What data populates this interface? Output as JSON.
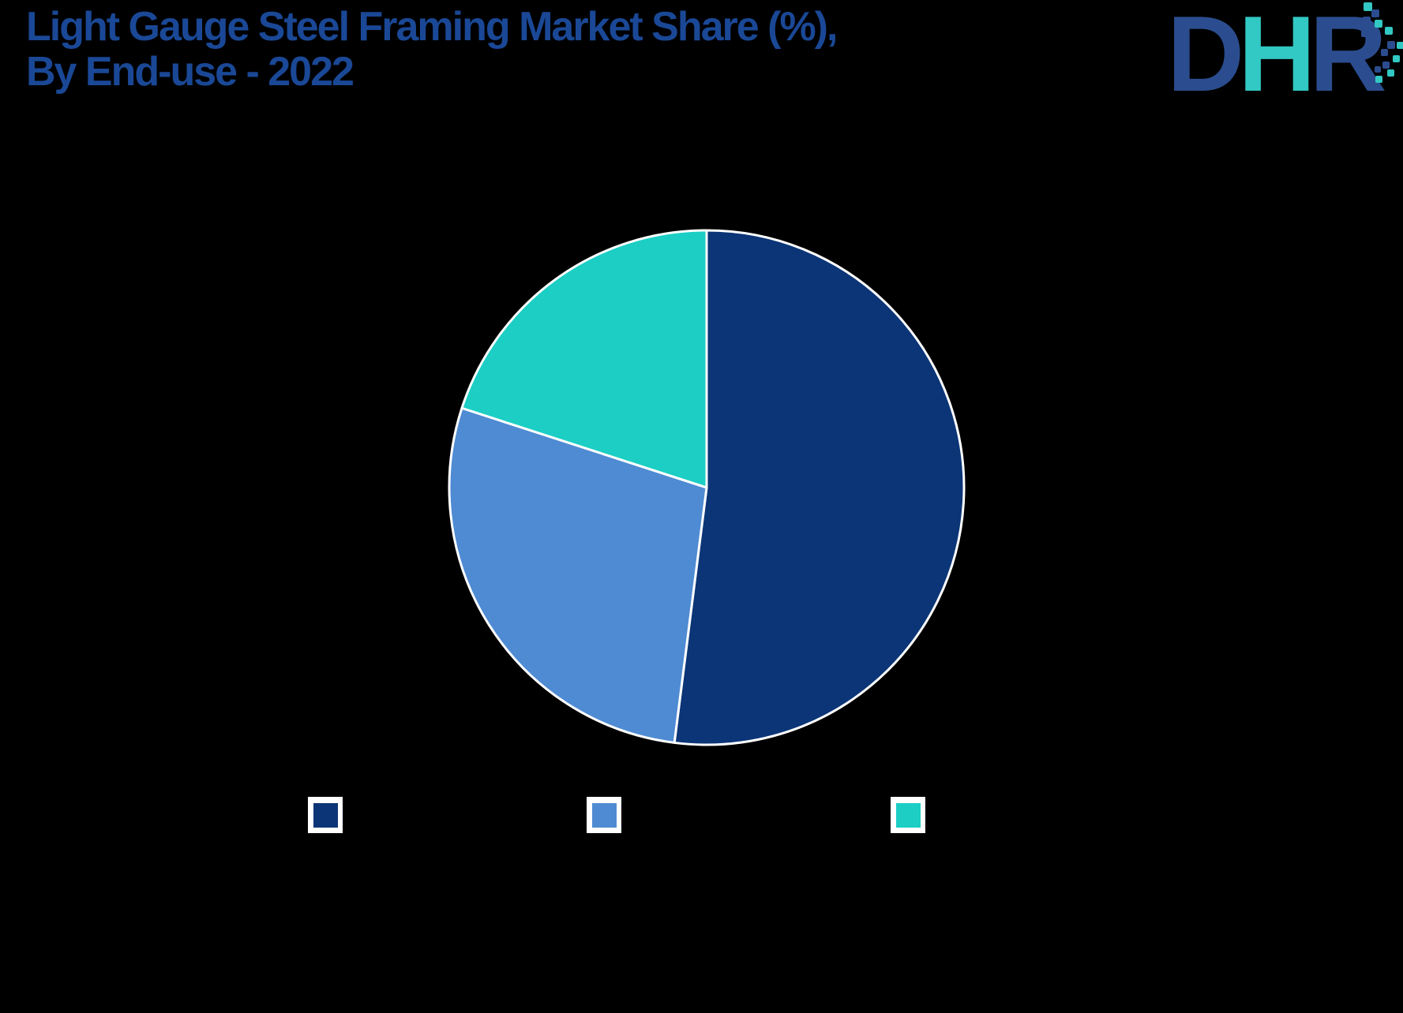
{
  "header": {
    "title_line1": "Light Gauge Steel Framing Market Share (%),",
    "title_line2": "By End-use - 2022",
    "title_color": "#1A4896"
  },
  "logo": {
    "letters": [
      {
        "char": "D",
        "color": "#2B4D8F"
      },
      {
        "char": "H",
        "color": "#32C8C3"
      },
      {
        "char": "R",
        "color": "#2B4D8F"
      }
    ],
    "navy": "#2B4D8F",
    "teal": "#32C8C3"
  },
  "chart_data": {
    "type": "pie",
    "title": "Light Gauge Steel Framing Market Share (%), By End-use - 2022",
    "start_angle_deg": 0,
    "direction": "clockwise",
    "stroke_color": "#ffffff",
    "segments": [
      {
        "label": "",
        "value": 52,
        "color": "#0B3576"
      },
      {
        "label": "",
        "value": 28,
        "color": "#4F8BD3"
      },
      {
        "label": "",
        "value": 20,
        "color": "#1CCEC4"
      }
    ],
    "legend": {
      "position": "bottom",
      "labels_visible": false
    }
  }
}
